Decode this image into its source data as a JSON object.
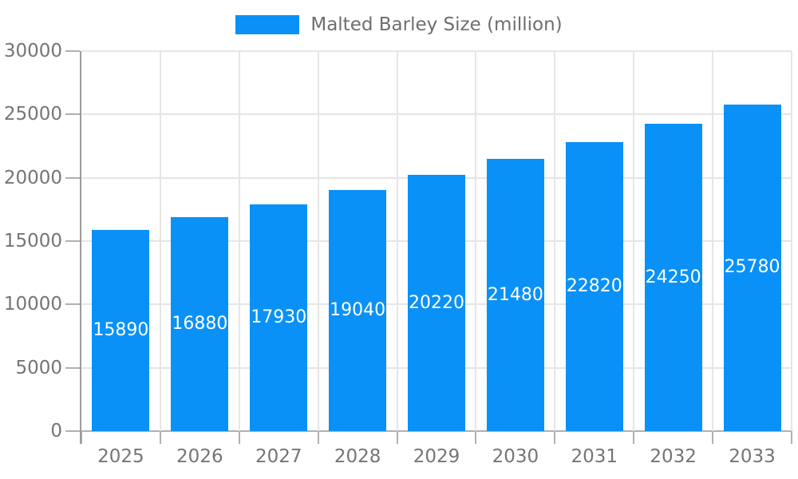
{
  "legend": {
    "label": "Malted Barley Size (million)"
  },
  "colors": {
    "bar": "#0991F7",
    "axis_text": "#757575",
    "grid_line": "#E5E5E5",
    "axis_line": "#9B9B9B",
    "tick_line": "#B0B0B0",
    "bar_label_text": "#FFFFFF",
    "legend_text": "#6E6E6E"
  },
  "chart_data": {
    "type": "bar",
    "title": "Malted Barley Size (million)",
    "categories": [
      "2025",
      "2026",
      "2027",
      "2028",
      "2029",
      "2030",
      "2031",
      "2032",
      "2033"
    ],
    "values": [
      15890,
      16880,
      17930,
      19040,
      20220,
      21480,
      22820,
      24250,
      25780
    ],
    "xlabel": "",
    "ylabel": "",
    "ylim": [
      0,
      30000
    ],
    "yticks": [
      0,
      5000,
      10000,
      15000,
      20000,
      25000,
      30000
    ],
    "grid": true,
    "legend_position": "top-center",
    "value_labels": "inside-center-white"
  }
}
